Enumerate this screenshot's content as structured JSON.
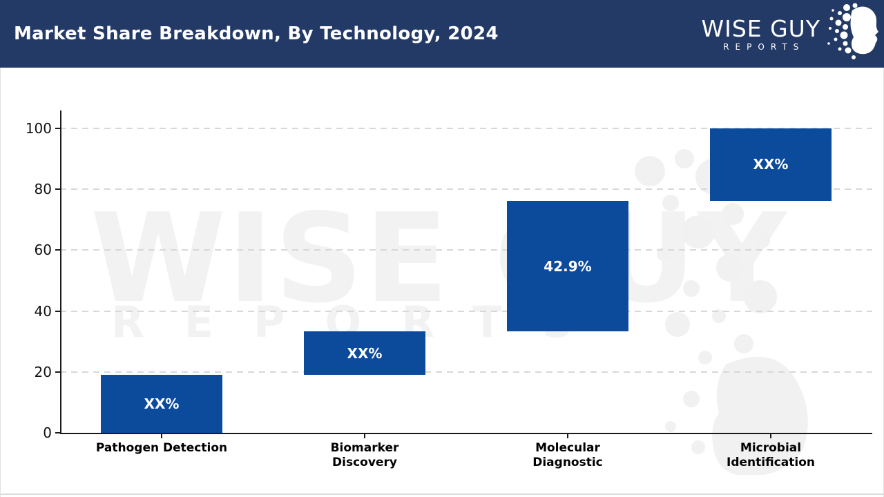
{
  "header": {
    "title": "Market Share Breakdown, By Technology, 2024",
    "logo": {
      "line1": "WISE GUY",
      "line2": "REPORTS"
    }
  },
  "watermark": {
    "line1": "WISE GUY",
    "line2": "REPORTS"
  },
  "colors": {
    "header_navy": "#243a66",
    "bar_blue": "#0c4a9c",
    "gridline_gray": "#d8d8d8",
    "watermark_gray": "#f2f2f2",
    "axis_black": "#1a1a1a"
  },
  "chart_data": {
    "type": "bar",
    "subtype": "waterfall",
    "title": "Market Share Breakdown, By Technology, 2024",
    "xlabel": "",
    "ylabel": "",
    "ylim": [
      0,
      100
    ],
    "yticks": [
      0,
      20,
      40,
      60,
      80,
      100
    ],
    "grid": "dashed horizontal",
    "legend": "none",
    "categories": [
      "Pathogen Detection",
      "Biomarker\nDiscovery",
      "Molecular\nDiagnostic",
      "Microbial\nIdentification"
    ],
    "bars": [
      {
        "category": "Pathogen Detection",
        "start": 0,
        "end": 19,
        "height": 19,
        "label": "XX%"
      },
      {
        "category": "Biomarker Discovery",
        "start": 19,
        "end": 33.3,
        "height": 14.3,
        "label": "XX%"
      },
      {
        "category": "Molecular Diagnostic",
        "start": 33.3,
        "end": 76.2,
        "height": 42.9,
        "label": "42.9%"
      },
      {
        "category": "Microbial Identification",
        "start": 76.2,
        "end": 100,
        "height": 23.8,
        "label": "XX%"
      }
    ]
  }
}
